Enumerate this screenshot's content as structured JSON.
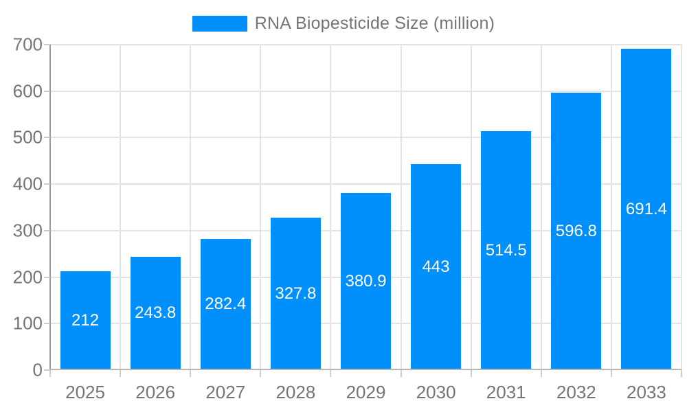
{
  "legend": {
    "label": "RNA Biopesticide Size (million)"
  },
  "colors": {
    "bar": "#008FFB",
    "bar_label": "#ffffff",
    "axis_text": "#757575",
    "grid": "#e3e3e3",
    "tick": "#cccccc",
    "y_axis_line": "#999999",
    "x_axis_line": "#b6b6b6"
  },
  "chart_data": {
    "type": "bar",
    "title": "RNA Biopesticide Size (million)",
    "categories": [
      "2025",
      "2026",
      "2027",
      "2028",
      "2029",
      "2030",
      "2031",
      "2032",
      "2033"
    ],
    "series": [
      {
        "name": "RNA Biopesticide Size (million)",
        "values": [
          212,
          243.8,
          282.4,
          327.8,
          380.9,
          443,
          514.5,
          596.8,
          691.4
        ]
      }
    ],
    "data_labels": [
      212,
      243.8,
      282.4,
      327.8,
      380.9,
      443,
      514.5,
      596.8,
      691.4
    ],
    "xlabel": "",
    "ylabel": "",
    "ylim": [
      0,
      700
    ],
    "ytick_step": 100,
    "yticks": [
      0,
      100,
      200,
      300,
      400,
      500,
      600,
      700
    ],
    "grid": true,
    "legend_position": "top",
    "data_label_position": "inside-center"
  }
}
